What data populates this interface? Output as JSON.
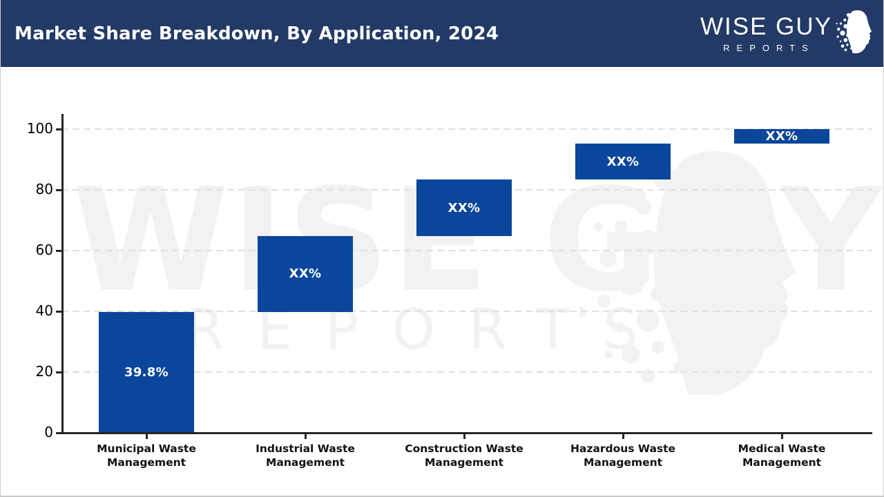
{
  "header": {
    "title": "Market Share Breakdown, By Application, 2024",
    "background_color": "#233a66"
  },
  "logo": {
    "line1": "WISE GUY",
    "line2": "REPORTS"
  },
  "watermark": {
    "line1": "WISE GUY",
    "line2": "REPORTS"
  },
  "chart_data": {
    "type": "bar",
    "subtype": "waterfall-cumulative",
    "title": "Market Share Breakdown, By Application, 2024",
    "categories": [
      "Municipal Waste\nManagement",
      "Industrial Waste\nManagement",
      "Construction Waste\nManagement",
      "Hazardous Waste\nManagement",
      "Medical Waste\nManagement"
    ],
    "segments": [
      {
        "name": "Municipal Waste Management",
        "start": 0,
        "end": 39.8,
        "label": "39.8%"
      },
      {
        "name": "Industrial Waste Management",
        "start": 39.8,
        "end": 64.8,
        "label": "XX%"
      },
      {
        "name": "Construction Waste Management",
        "start": 64.8,
        "end": 83.3,
        "label": "XX%"
      },
      {
        "name": "Hazardous Waste Management",
        "start": 83.3,
        "end": 95.3,
        "label": "XX%"
      },
      {
        "name": "Medical Waste Management",
        "start": 95.3,
        "end": 100,
        "label": "XX%"
      }
    ],
    "ylim": [
      0,
      100
    ],
    "yticks": [
      0,
      20,
      40,
      60,
      80,
      100
    ],
    "xlabel": "",
    "ylabel": "",
    "grid": "horizontal-dashed",
    "legend": "none",
    "bar_color": "#0a469b",
    "bar_label_color": "#ffffff"
  }
}
